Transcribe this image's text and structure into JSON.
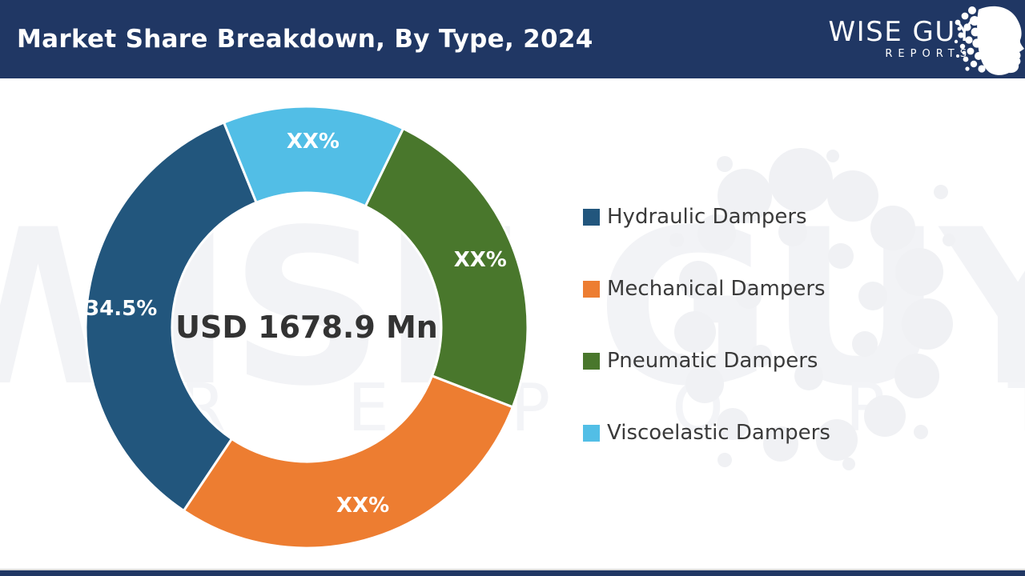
{
  "header": {
    "title": "Market Share Breakdown, By Type, 2024",
    "bg_color": "#203764",
    "logo": {
      "line1": "WISE GUY",
      "line2": "REPORTS"
    }
  },
  "watermark": {
    "line1": "WISE GUY",
    "line2": "REPORTS"
  },
  "chart_data": {
    "type": "donut",
    "title": "Market Share Breakdown, By Type, 2024",
    "center_label": "USD 1678.9 Mn",
    "start_angle_deg": 112,
    "direction": "counterclockwise",
    "inner_radius_ratio": 0.61,
    "legend_position": "right",
    "segments": [
      {
        "name": "Hydraulic Dampers",
        "value_pct": 34.5,
        "label": "34.5%",
        "color": "#22567D"
      },
      {
        "name": "Mechanical Dampers",
        "value_pct": 28.5,
        "label": "XX%",
        "color": "#ED7D31"
      },
      {
        "name": "Pneumatic Dampers",
        "value_pct": 23.7,
        "label": "XX%",
        "color": "#49772C"
      },
      {
        "name": "Viscoelastic Dampers",
        "value_pct": 13.3,
        "label": "XX%",
        "color": "#52BEE6"
      }
    ]
  }
}
